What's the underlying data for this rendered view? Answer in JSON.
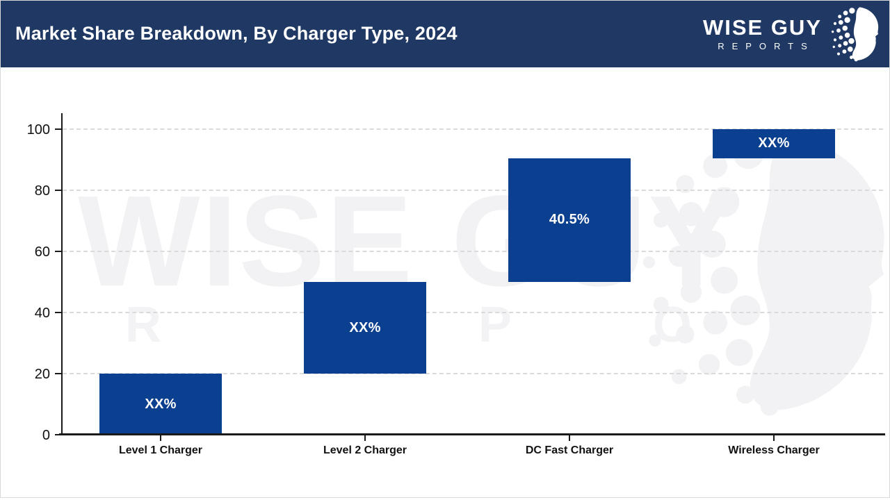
{
  "header": {
    "title": "Market Share Breakdown, By Charger Type, 2024",
    "bg_color": "#1f3864",
    "logo": {
      "line1": "WISE GUY",
      "line2": "REPORTS"
    }
  },
  "watermark": {
    "line1": "WISE GUY",
    "line2": "R E P O R T S"
  },
  "chart_data": {
    "type": "bar",
    "subtype": "floating-waterfall",
    "title": "Market Share Breakdown, By Charger Type, 2024",
    "categories": [
      "Level 1 Charger",
      "Level 2 Charger",
      "DC Fast Charger",
      "Wireless Charger"
    ],
    "series": [
      {
        "name": "Market Share",
        "ranges": [
          [
            0,
            20
          ],
          [
            20,
            50
          ],
          [
            50,
            90.5
          ],
          [
            90.5,
            100
          ]
        ],
        "labels": [
          "XX%",
          "XX%",
          "40.5%",
          "XX%"
        ]
      }
    ],
    "ylim": [
      0,
      100
    ],
    "yticks": [
      0,
      20,
      40,
      60,
      80,
      100
    ],
    "grid": "horizontal-dashed",
    "bar_color": "#0b3f90",
    "bar_label_color": "#ffffff",
    "axis_color": "#1a1a1a",
    "gridline_color": "#dadada"
  }
}
